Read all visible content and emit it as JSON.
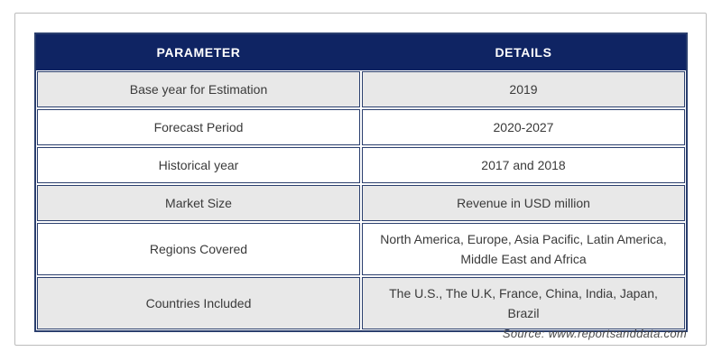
{
  "chart_data": {
    "type": "table",
    "title": "",
    "columns": [
      "PARAMETER",
      "DETAILS"
    ],
    "rows": [
      {
        "parameter": "Base year for Estimation",
        "details": "2019",
        "shaded": true
      },
      {
        "parameter": "Forecast Period",
        "details": "2020-2027",
        "shaded": false
      },
      {
        "parameter": "Historical year",
        "details": "2017 and 2018",
        "shaded": false
      },
      {
        "parameter": "Market Size",
        "details": "Revenue in USD million",
        "shaded": true
      },
      {
        "parameter": "Regions Covered",
        "details": "North America, Europe, Asia Pacific, Latin America, Middle East and Africa",
        "shaded": false
      },
      {
        "parameter": "Countries Included",
        "details": "The U.S., The  U.K, France, China, India, Japan, Brazil",
        "shaded": true
      }
    ],
    "source": "Source: www.reportsanddata.com",
    "colors": {
      "header_bg": "#0f2463",
      "header_text": "#ffffff",
      "row_shaded_bg": "#e8e8e8",
      "row_plain_bg": "#ffffff",
      "cell_border": "#2b3f6e",
      "frame_border": "#bcbcbc",
      "body_text": "#3a3a3a",
      "source_text": "#4a4a4a"
    }
  }
}
